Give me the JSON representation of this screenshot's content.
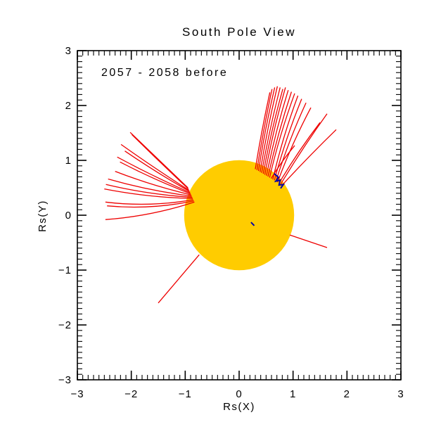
{
  "window": {
    "background": "#ffffff"
  },
  "chart_data": {
    "type": "line",
    "title": "South Pole View",
    "annotation": {
      "text": "2057 - 2058 before",
      "x": -2.52,
      "y": 2.55
    },
    "xlabel": "Rs(X)",
    "ylabel": "Rs(Y)",
    "xlim": [
      -3,
      3
    ],
    "ylim": [
      -3,
      3
    ],
    "xticks": [
      -3,
      -2,
      -1,
      0,
      1,
      2,
      3
    ],
    "yticks": [
      -3,
      -2,
      -1,
      0,
      1,
      2,
      3
    ],
    "minor_tick_step": 0.1,
    "grid": false,
    "legend": null,
    "axis_color": "#000000",
    "sun": {
      "x": 0,
      "y": 0,
      "r": 1.02,
      "color": "#FFCC00"
    },
    "field_line_color": "#EE0000",
    "marker_color": "#0000A8",
    "bundles": [
      {
        "name": "left-fan",
        "foot_a": [
          -0.95,
          0.5
        ],
        "foot_b": [
          -0.83,
          0.24
        ],
        "tips": [
          [
            -2.02,
            1.51,
            0.0
          ],
          [
            -1.99,
            1.47,
            0.01
          ],
          [
            -2.19,
            1.29,
            0.02
          ],
          [
            -2.12,
            1.17,
            0.03
          ],
          [
            -2.26,
            1.06,
            0.03
          ],
          [
            -2.21,
            0.97,
            0.04
          ],
          [
            -2.3,
            0.8,
            0.05
          ],
          [
            -2.43,
            0.66,
            0.06
          ],
          [
            -2.47,
            0.56,
            0.07
          ],
          [
            -2.5,
            0.48,
            0.07
          ],
          [
            -2.48,
            0.24,
            0.12
          ],
          [
            -2.45,
            0.17,
            0.12
          ],
          [
            -2.48,
            -0.08,
            0.1
          ]
        ]
      },
      {
        "name": "upper-right-fan",
        "foot_a": [
          0.3,
          0.84
        ],
        "foot_b": [
          0.8,
          0.55
        ],
        "tips": [
          [
            0.57,
            2.24,
            0.02
          ],
          [
            0.61,
            2.3,
            0.02
          ],
          [
            0.66,
            2.33,
            0.03
          ],
          [
            0.71,
            2.35,
            0.03
          ],
          [
            0.76,
            2.33,
            0.03
          ],
          [
            0.81,
            2.3,
            0.04
          ],
          [
            0.86,
            2.33,
            0.04
          ],
          [
            0.91,
            2.28,
            0.04
          ],
          [
            0.97,
            2.25,
            0.04
          ],
          [
            1.03,
            2.22,
            0.05
          ],
          [
            1.03,
            1.27,
            0.03
          ],
          [
            1.09,
            2.18,
            0.05
          ],
          [
            1.16,
            2.12,
            0.05
          ],
          [
            1.24,
            2.05,
            0.05
          ],
          [
            1.33,
            1.96,
            0.05
          ],
          [
            1.5,
            1.69,
            0.04
          ],
          [
            1.63,
            1.85,
            0.03
          ],
          [
            1.8,
            1.56,
            0.02
          ]
        ]
      }
    ],
    "single_lines": [
      {
        "name": "lower-right-line",
        "from": [
          0.94,
          -0.36
        ],
        "to": [
          1.63,
          -0.59
        ]
      },
      {
        "name": "lower-left-line",
        "from": [
          -0.74,
          -0.72
        ],
        "to": [
          -1.5,
          -1.6
        ]
      }
    ],
    "markers": [
      {
        "name": "footpoint-squiggle",
        "points": [
          [
            0.65,
            0.76
          ],
          [
            0.73,
            0.69
          ],
          [
            0.68,
            0.62
          ],
          [
            0.76,
            0.64
          ],
          [
            0.74,
            0.55
          ],
          [
            0.82,
            0.56
          ],
          [
            0.77,
            0.49
          ]
        ]
      },
      {
        "name": "center-dash",
        "points": [
          [
            0.22,
            -0.13
          ],
          [
            0.28,
            -0.19
          ]
        ]
      }
    ]
  }
}
